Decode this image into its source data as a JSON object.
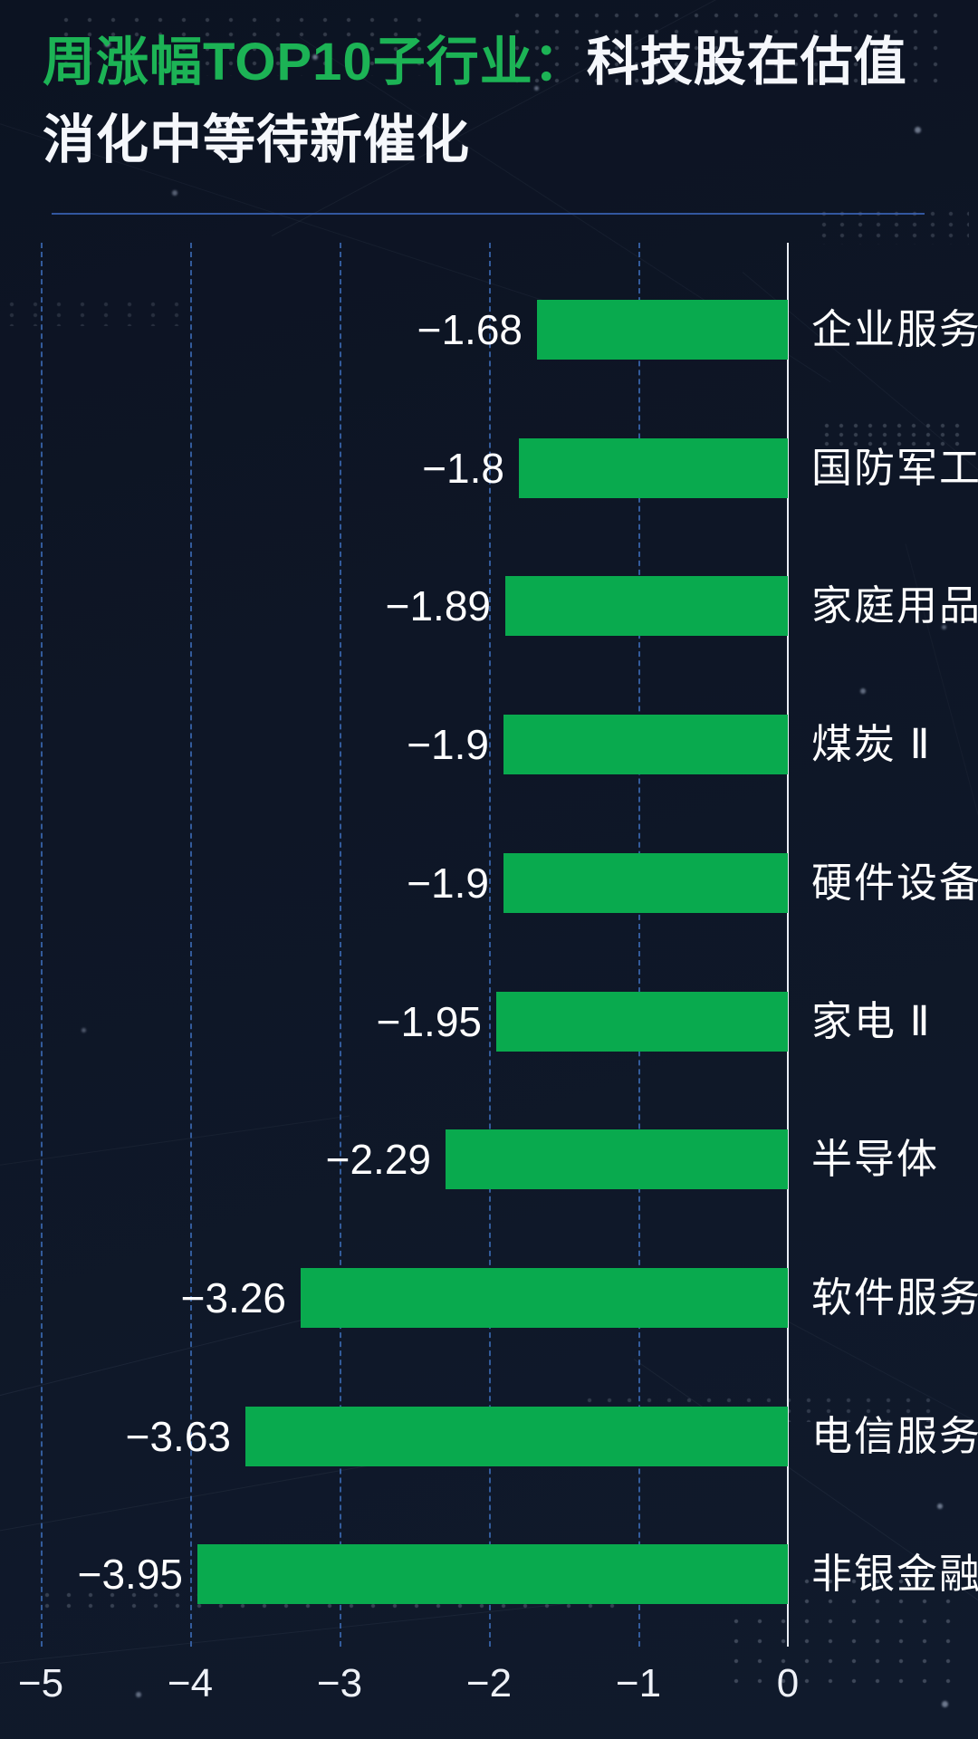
{
  "title": {
    "line1_highlight": "周涨幅TOP10子行业：",
    "line1_rest": "科技股在估值",
    "line2": "消化中等待新催化"
  },
  "colors": {
    "background": "#0e1626",
    "title_highlight": "#1cb355",
    "bar_green": "#09aa4e",
    "gridline_blue": "#3a68b0",
    "zero_line": "#e9edf4",
    "divider_blue": "#3a63b5",
    "text_white": "#ffffff"
  },
  "chart_data": {
    "type": "bar",
    "orientation": "horizontal",
    "title": "周涨幅TOP10子行业：科技股在估值消化中等待新催化",
    "categories": [
      "企业服务",
      "国防军工",
      "家庭用品",
      "煤炭 Ⅱ",
      "硬件设备",
      "家电 Ⅱ",
      "半导体",
      "软件服务",
      "电信服务",
      "非银金融"
    ],
    "values": [
      -1.68,
      -1.8,
      -1.89,
      -1.9,
      -1.9,
      -1.95,
      -2.29,
      -3.26,
      -3.63,
      -3.95
    ],
    "value_labels": [
      "−1.68",
      "−1.8",
      "−1.89",
      "−1.9",
      "−1.9",
      "−1.95",
      "−2.29",
      "−3.26",
      "−3.63",
      "−3.95"
    ],
    "xlim": [
      -5,
      0
    ],
    "xticks": [
      -5,
      -4,
      -3,
      -2,
      -1,
      0
    ],
    "xtick_labels": [
      "−5",
      "−4",
      "−3",
      "−2",
      "−1",
      "0"
    ],
    "grid": "vertical dashed, solid line at 0",
    "legend": "none",
    "bar_color": "#09aa4e"
  }
}
